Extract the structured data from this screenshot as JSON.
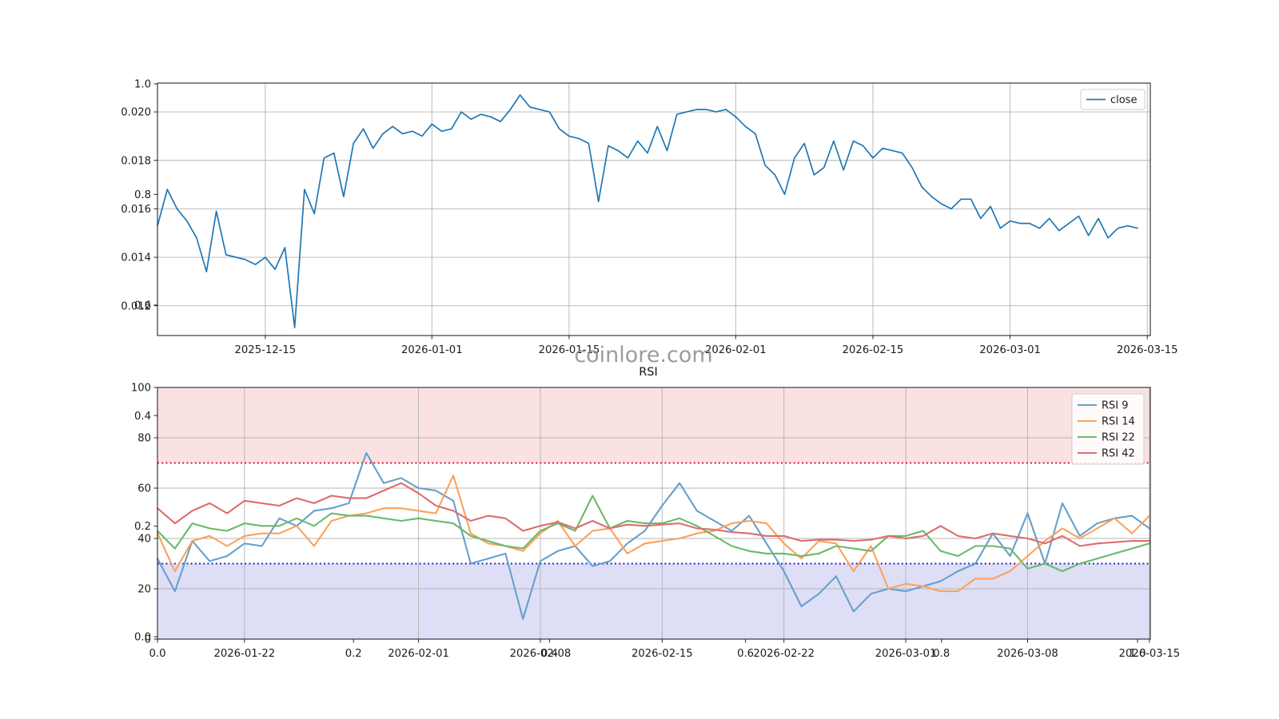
{
  "watermark": "coinlore.com",
  "colors": {
    "grid": "#b4b4b4",
    "spine": "#262626",
    "tick_text": "#1c1c1c",
    "watermark": "#8b8b8b",
    "close_line": "#1f77b4",
    "rsi9_line": "#66a0cb",
    "rsi14_line": "#fba25b",
    "rsi22_line": "#6aba6a",
    "rsi42_line": "#dd6d6e",
    "overbought_band": "#fae1e2",
    "oversold_band": "#dedef6",
    "overbought_line": "#dd1530",
    "oversold_line": "#2424cf"
  },
  "figure_axis": {
    "yticks": [
      "1.0",
      "0.8",
      "0.6",
      "0.4",
      "0.2",
      "0.0"
    ],
    "xticks": [
      "0.0",
      "0.2",
      "0.4",
      "0.6",
      "0.8",
      "1.0"
    ]
  },
  "chart_data": [
    {
      "type": "line",
      "title": "",
      "legend_position": "upper right",
      "grid": true,
      "x_start": "2025-12-04",
      "ylim": [
        0.01077,
        0.02119
      ],
      "yticks": [
        {
          "label": "0.012",
          "value": 0.012
        },
        {
          "label": "0.014",
          "value": 0.014
        },
        {
          "label": "0.016",
          "value": 0.016
        },
        {
          "label": "0.018",
          "value": 0.018
        },
        {
          "label": "0.020",
          "value": 0.02
        }
      ],
      "xticks": [
        "2025-12-15",
        "2026-01-01",
        "2026-01-15",
        "2026-02-01",
        "2026-02-15",
        "2026-03-01",
        "2026-03-15"
      ],
      "x_dates": [
        "2025-12-04",
        "2025-12-05",
        "2025-12-06",
        "2025-12-07",
        "2025-12-08",
        "2025-12-09",
        "2025-12-10",
        "2025-12-11",
        "2025-12-12",
        "2025-12-13",
        "2025-12-14",
        "2025-12-15",
        "2025-12-16",
        "2025-12-17",
        "2025-12-18",
        "2025-12-19",
        "2025-12-20",
        "2025-12-21",
        "2025-12-22",
        "2025-12-23",
        "2025-12-24",
        "2025-12-25",
        "2025-12-26",
        "2025-12-27",
        "2025-12-28",
        "2025-12-29",
        "2025-12-30",
        "2025-12-31",
        "2026-01-01",
        "2026-01-02",
        "2026-01-03",
        "2026-01-04",
        "2026-01-05",
        "2026-01-06",
        "2026-01-07",
        "2026-01-08",
        "2026-01-09",
        "2026-01-10",
        "2026-01-11",
        "2026-01-12",
        "2026-01-13",
        "2026-01-14",
        "2026-01-15",
        "2026-01-16",
        "2026-01-17",
        "2026-01-18",
        "2026-01-19",
        "2026-01-20",
        "2026-01-21",
        "2026-01-22",
        "2026-01-23",
        "2026-01-24",
        "2026-01-25",
        "2026-01-26",
        "2026-01-27",
        "2026-01-28",
        "2026-01-29",
        "2026-01-30",
        "2026-01-31",
        "2026-02-01",
        "2026-02-02",
        "2026-02-03",
        "2026-02-04",
        "2026-02-05",
        "2026-02-06",
        "2026-02-07",
        "2026-02-08",
        "2026-02-09",
        "2026-02-10",
        "2026-02-11",
        "2026-02-12",
        "2026-02-13",
        "2026-02-14",
        "2026-02-15",
        "2026-02-16",
        "2026-02-17",
        "2026-02-18",
        "2026-02-19",
        "2026-02-20",
        "2026-02-21",
        "2026-02-22",
        "2026-02-23",
        "2026-02-24",
        "2026-02-25",
        "2026-02-26",
        "2026-02-27",
        "2026-02-28",
        "2026-03-01",
        "2026-03-02",
        "2026-03-03",
        "2026-03-04",
        "2026-03-05",
        "2026-03-06",
        "2026-03-07",
        "2026-03-08",
        "2026-03-09",
        "2026-03-10",
        "2026-03-11",
        "2026-03-12",
        "2026-03-13",
        "2026-03-14"
      ],
      "series": [
        {
          "name": "close",
          "color": "#1f77b4",
          "values": [
            0.0153,
            0.0168,
            0.016,
            0.0155,
            0.0148,
            0.0134,
            0.0159,
            0.0141,
            0.014,
            0.0139,
            0.0137,
            0.014,
            0.0135,
            0.0144,
            0.0111,
            0.0168,
            0.0158,
            0.0181,
            0.0183,
            0.0165,
            0.0187,
            0.0193,
            0.0185,
            0.0191,
            0.0194,
            0.0191,
            0.0192,
            0.019,
            0.0195,
            0.0192,
            0.0193,
            0.02,
            0.0197,
            0.0199,
            0.0198,
            0.0196,
            0.0201,
            0.0207,
            0.0202,
            0.0201,
            0.02,
            0.0193,
            0.019,
            0.0189,
            0.0187,
            0.0163,
            0.0186,
            0.0184,
            0.0181,
            0.0188,
            0.0183,
            0.0194,
            0.0184,
            0.0199,
            0.02,
            0.0201,
            0.0201,
            0.02,
            0.0201,
            0.0198,
            0.0194,
            0.0191,
            0.0178,
            0.0174,
            0.0166,
            0.0181,
            0.0187,
            0.0174,
            0.0177,
            0.0188,
            0.0176,
            0.0188,
            0.0186,
            0.0181,
            0.0185,
            0.0184,
            0.0183,
            0.0177,
            0.0169,
            0.0165,
            0.0162,
            0.016,
            0.0164,
            0.0164,
            0.0156,
            0.0161,
            0.0152,
            0.0155,
            0.0154,
            0.0154,
            0.0152,
            0.0156,
            0.0151,
            0.0154,
            0.0157,
            0.0149,
            0.0156,
            0.0148,
            0.0152,
            0.0153,
            0.0152
          ]
        }
      ]
    },
    {
      "type": "line",
      "title": "RSI",
      "legend_position": "upper right",
      "grid": true,
      "x_start": "2026-01-17",
      "ylim": [
        0,
        100
      ],
      "overbought_level": 70,
      "oversold_level": 30,
      "bands": [
        {
          "name": "overbought",
          "from": 70,
          "to": 100,
          "color": "#fae1e2"
        },
        {
          "name": "oversold",
          "from": 0,
          "to": 30,
          "color": "#dedef6"
        }
      ],
      "ref_lines": [
        {
          "name": "overbought",
          "value": 70,
          "color": "#dd1530",
          "style": "dotted"
        },
        {
          "name": "oversold",
          "value": 30,
          "color": "#2424cf",
          "style": "dotted"
        }
      ],
      "yticks": [
        {
          "label": "0",
          "value": 0
        },
        {
          "label": "20",
          "value": 20
        },
        {
          "label": "40",
          "value": 40
        },
        {
          "label": "60",
          "value": 60
        },
        {
          "label": "80",
          "value": 80
        },
        {
          "label": "100",
          "value": 100
        }
      ],
      "xticks": [
        "2026-01-22",
        "2026-02-01",
        "2026-02-08",
        "2026-02-15",
        "2026-02-22",
        "2026-03-01",
        "2026-03-08",
        "2026-03-15"
      ],
      "x_dates": [
        "2026-01-17",
        "2026-01-18",
        "2026-01-19",
        "2026-01-20",
        "2026-01-21",
        "2026-01-22",
        "2026-01-23",
        "2026-01-24",
        "2026-01-25",
        "2026-01-26",
        "2026-01-27",
        "2026-01-28",
        "2026-01-29",
        "2026-01-30",
        "2026-01-31",
        "2026-02-01",
        "2026-02-02",
        "2026-02-03",
        "2026-02-04",
        "2026-02-05",
        "2026-02-06",
        "2026-02-07",
        "2026-02-08",
        "2026-02-09",
        "2026-02-10",
        "2026-02-11",
        "2026-02-12",
        "2026-02-13",
        "2026-02-14",
        "2026-02-15",
        "2026-02-16",
        "2026-02-17",
        "2026-02-18",
        "2026-02-19",
        "2026-02-20",
        "2026-02-21",
        "2026-02-22",
        "2026-02-23",
        "2026-02-24",
        "2026-02-25",
        "2026-02-26",
        "2026-02-27",
        "2026-02-28",
        "2026-03-01",
        "2026-03-02",
        "2026-03-03",
        "2026-03-04",
        "2026-03-05",
        "2026-03-06",
        "2026-03-07",
        "2026-03-08",
        "2026-03-09",
        "2026-03-10",
        "2026-03-11",
        "2026-03-12",
        "2026-03-13",
        "2026-03-14",
        "2026-03-15"
      ],
      "series": [
        {
          "name": "RSI 9",
          "color": "#66a0cb",
          "values": [
            32,
            19,
            39,
            31,
            33,
            38,
            37,
            48,
            45,
            51,
            52,
            54,
            74,
            62,
            64,
            60,
            59,
            55,
            30,
            32,
            34,
            8,
            31,
            35,
            37,
            29,
            31,
            38,
            43,
            53,
            62,
            51,
            47,
            43,
            49,
            38,
            27,
            13,
            18,
            25,
            11,
            18,
            20,
            19,
            21,
            23,
            27,
            30,
            42,
            33,
            50,
            30,
            54,
            41,
            46,
            48,
            49,
            44
          ]
        },
        {
          "name": "RSI 14",
          "color": "#fba25b",
          "values": [
            42,
            27,
            39,
            41,
            37,
            41,
            42,
            42,
            45,
            37,
            47,
            49,
            50,
            52,
            52,
            51,
            50,
            65,
            42,
            38,
            37,
            35,
            42,
            47,
            37,
            43,
            44,
            34,
            38,
            39,
            40,
            42,
            43,
            46,
            47,
            46,
            38,
            32,
            39,
            38,
            27,
            37,
            20,
            22,
            21,
            19,
            19,
            24,
            24,
            27,
            33,
            39,
            44,
            40,
            44,
            48,
            42,
            49
          ]
        },
        {
          "name": "RSI 22",
          "color": "#6aba6a",
          "values": [
            43,
            36,
            46,
            44,
            43,
            46,
            45,
            45,
            48,
            45,
            50,
            49,
            49,
            48,
            47,
            48,
            47,
            46,
            41,
            39,
            37,
            36,
            43,
            46,
            43,
            57,
            44,
            47,
            46,
            46,
            48,
            45,
            41,
            37,
            35,
            34,
            34,
            33,
            34,
            37,
            36,
            35,
            41,
            41,
            43,
            35,
            33,
            37,
            37,
            36,
            28,
            30,
            27,
            30,
            32,
            34,
            36,
            38
          ]
        },
        {
          "name": "RSI 42",
          "color": "#dd6d6e",
          "values": [
            52,
            46,
            51,
            54,
            50,
            55,
            54,
            53,
            56,
            54,
            57,
            56,
            56,
            59,
            62,
            58,
            53,
            51,
            47,
            49,
            48,
            43,
            45,
            46.5,
            44,
            47,
            44,
            45.5,
            45,
            45.5,
            46,
            44,
            43.5,
            42.5,
            42,
            41,
            41,
            39,
            39.5,
            39.5,
            39,
            39.5,
            41,
            40,
            41,
            45,
            41,
            40,
            42,
            41,
            40,
            38,
            41,
            37,
            38,
            38.5,
            39,
            39
          ]
        }
      ]
    }
  ]
}
